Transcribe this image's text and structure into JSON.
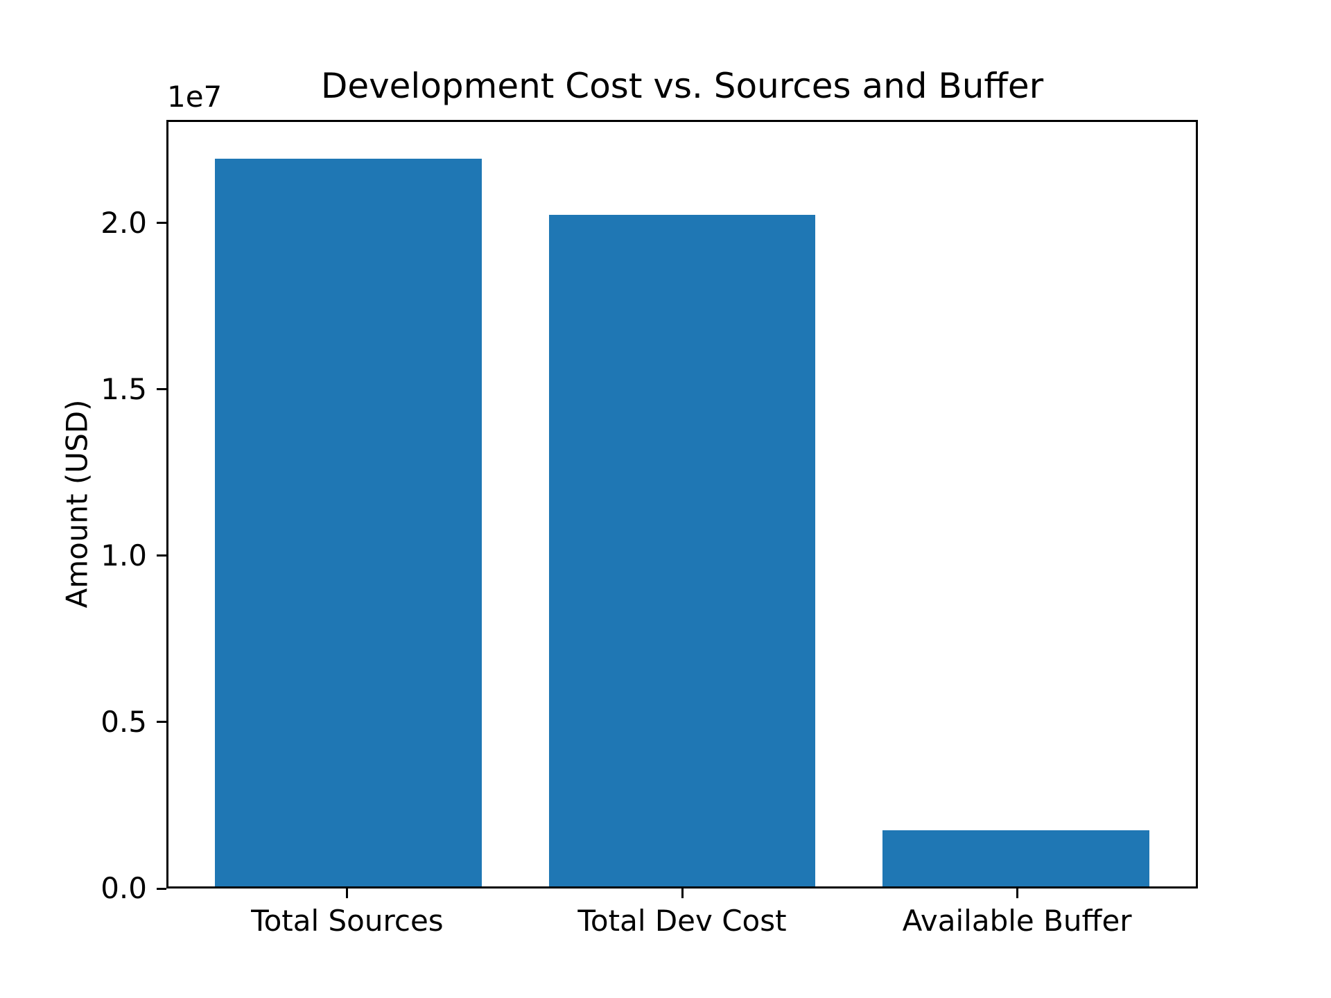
{
  "chart_data": {
    "type": "bar",
    "title": "Development Cost vs. Sources and Buffer",
    "categories": [
      "Total Sources",
      "Total Dev Cost",
      "Available Buffer"
    ],
    "values": [
      22000000,
      20300000,
      1700000
    ],
    "xlabel": "",
    "ylabel": "Amount (USD)",
    "ylim": [
      0,
      23100000
    ],
    "xlim": [
      -0.54,
      2.54
    ],
    "bar_width": 0.8,
    "bar_color": "#1f77b4",
    "grid": false,
    "legend_position": "none",
    "y_ticks": {
      "offset_label": "1e7",
      "values": [
        0,
        5000000,
        10000000,
        15000000,
        20000000
      ],
      "labels": [
        "0.0",
        "0.5",
        "1.0",
        "1.5",
        "2.0"
      ]
    }
  }
}
